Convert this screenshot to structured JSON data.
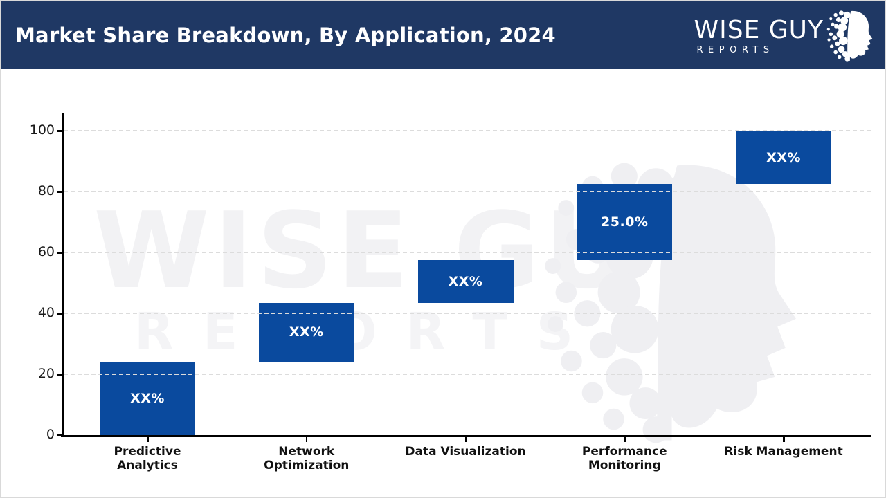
{
  "header": {
    "title": "Market Share Breakdown, By Application, 2024",
    "logo": {
      "line1": "WISE GUY",
      "line2": "REPORTS"
    }
  },
  "watermark": {
    "line1": "WISE GUY",
    "line2": "REPORTS"
  },
  "colors": {
    "header_bg": "#1f3864",
    "bar": "#0a4a9e",
    "bar_label_text": "#ffffff",
    "grid": "#dcdcdc",
    "axis": "#000000",
    "watermark": "#f2f2f4"
  },
  "chart_data": {
    "type": "bar",
    "subtype": "floating-waterfall",
    "title": "Market Share Breakdown, By Application, 2024",
    "xlabel": "",
    "ylabel": "",
    "ylim": [
      0,
      105
    ],
    "yticks": [
      0,
      20,
      40,
      60,
      80,
      100
    ],
    "grid": "horizontal-dashed",
    "legend": "none",
    "categories": [
      "Predictive\nAnalytics",
      "Network\nOptimization",
      "Data Visualization",
      "Performance\nMonitoring",
      "Risk Management"
    ],
    "bars": [
      {
        "category": "Predictive Analytics",
        "start": 0,
        "end": 24,
        "value": 24,
        "label": "XX%"
      },
      {
        "category": "Network Optimization",
        "start": 24,
        "end": 43.5,
        "value": 19.5,
        "label": "XX%"
      },
      {
        "category": "Data Visualization",
        "start": 43.5,
        "end": 57.5,
        "value": 14,
        "label": "XX%"
      },
      {
        "category": "Performance Monitoring",
        "start": 57.5,
        "end": 82.5,
        "value": 25.0,
        "label": "25.0%"
      },
      {
        "category": "Risk Management",
        "start": 82.5,
        "end": 100,
        "value": 17.5,
        "label": "XX%"
      }
    ]
  }
}
